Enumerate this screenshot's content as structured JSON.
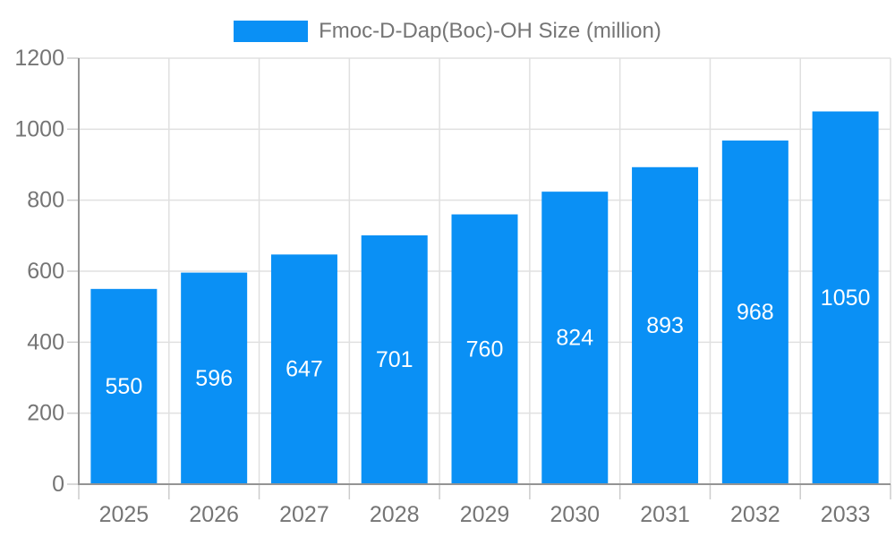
{
  "legend": {
    "label": "Fmoc-D-Dap(Boc)-OH Size (million)"
  },
  "chart_data": {
    "type": "bar",
    "title": "Fmoc-D-Dap(Boc)-OH Size (million)",
    "series_name": "Fmoc-D-Dap(Boc)-OH Size (million)",
    "categories": [
      "2025",
      "2026",
      "2027",
      "2028",
      "2029",
      "2030",
      "2031",
      "2032",
      "2033"
    ],
    "values": [
      550,
      596,
      647,
      701,
      760,
      824,
      893,
      968,
      1050
    ],
    "xlabel": "",
    "ylabel": "",
    "ylim": [
      0,
      1200
    ],
    "yticks": [
      0,
      200,
      400,
      600,
      800,
      1000,
      1200
    ],
    "grid": true,
    "legend_position": "top",
    "value_labels": "inside-center",
    "colors": {
      "bar": "#0a90f5",
      "value_label": "#ffffff",
      "axis_text": "#757575",
      "gridline": "#e0e0e0",
      "tick": "#cccccc",
      "axis_line": "#949494",
      "background": "#ffffff"
    }
  }
}
